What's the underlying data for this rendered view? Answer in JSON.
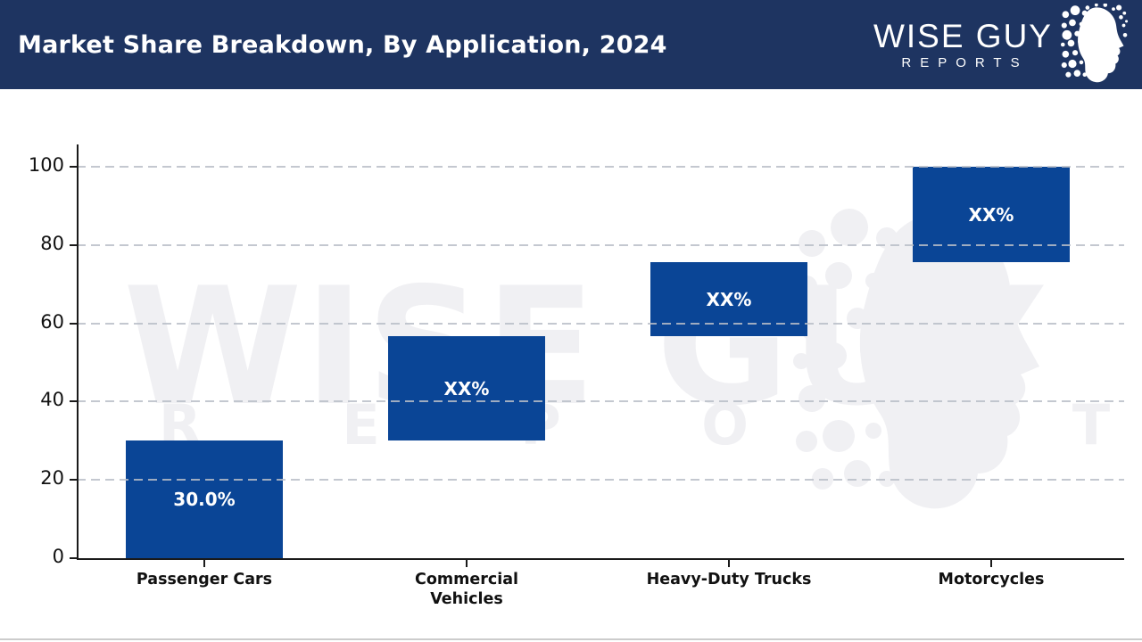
{
  "header": {
    "title": "Market Share Breakdown, By Application, 2024",
    "logo_line1": "WISE GUY",
    "logo_line2": "REPORTS"
  },
  "watermark": {
    "line1": "WISE GUY",
    "line2": "R E P O R T S"
  },
  "colors": {
    "header_bg": "#1e3461",
    "bar": "#0a4596",
    "bar_label": "#ffffff",
    "watermark": "#f0f0f3",
    "axis": "#1a1a1a"
  },
  "chart_data": {
    "type": "bar",
    "variant": "waterfall",
    "title": "Market Share Breakdown, By Application, 2024",
    "categories": [
      "Passenger Cars",
      "Commercial\nVehicles",
      "Heavy-Duty Trucks",
      "Motorcycles"
    ],
    "segments": [
      {
        "category": "Passenger Cars",
        "start": 0,
        "end": 30,
        "label": "30.0%"
      },
      {
        "category": "Commercial\nVehicles",
        "start": 30,
        "end": 56.7,
        "label": "XX%"
      },
      {
        "category": "Heavy-Duty Trucks",
        "start": 56.7,
        "end": 75.6,
        "label": "XX%"
      },
      {
        "category": "Motorcycles",
        "start": 75.6,
        "end": 100,
        "label": "XX%"
      }
    ],
    "yticks": [
      0,
      20,
      40,
      60,
      80,
      100
    ],
    "ylim": [
      0,
      106
    ],
    "xlabel": "",
    "ylabel": "",
    "grid": "horizontal-dashed",
    "legend": "none"
  }
}
